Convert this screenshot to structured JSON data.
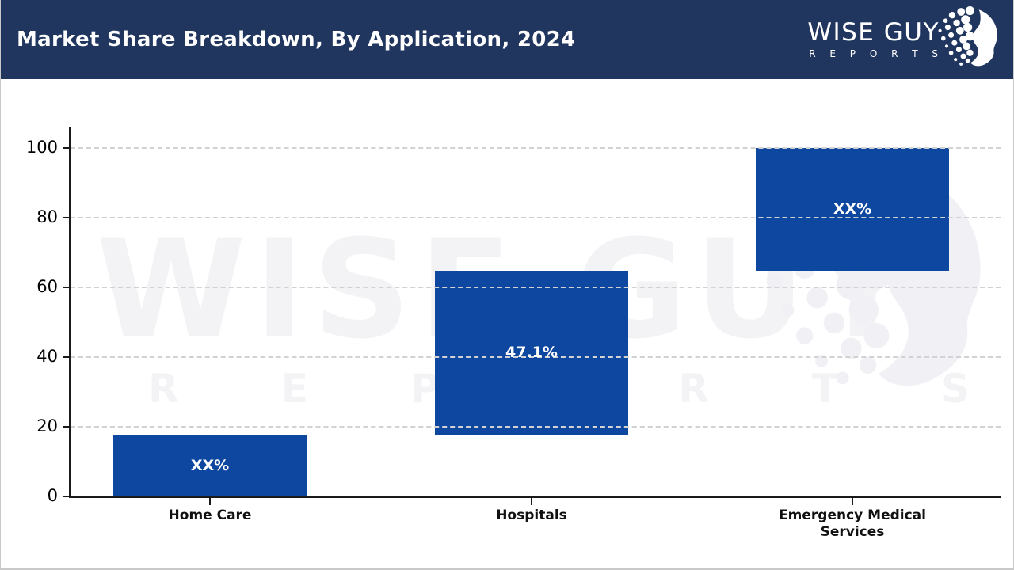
{
  "header": {
    "title": "Market Share Breakdown, By Application, 2024",
    "logo": {
      "wordmark": "WISE GUY",
      "subtext": "R E P O R T S",
      "head_icon": "dotted-head-profile-icon"
    }
  },
  "watermark": {
    "wordmark": "WISE GUY",
    "subtext": "R E P O R T S"
  },
  "chart_data": {
    "type": "bar",
    "subtype": "floating-waterfall-segments",
    "title": "Market Share Breakdown, By Application, 2024",
    "categories": [
      "Home Care",
      "Hospitals",
      "Emergency Medical Services"
    ],
    "bars": [
      {
        "category": "Home Care",
        "start": 0,
        "end": 17.7,
        "label": "XX%"
      },
      {
        "category": "Hospitals",
        "start": 17.7,
        "end": 64.8,
        "label": "47.1%"
      },
      {
        "category": "Emergency Medical Services",
        "start": 64.8,
        "end": 100,
        "label": "XX%"
      }
    ],
    "ylim": [
      0,
      106
    ],
    "yticks": [
      0,
      20,
      40,
      60,
      80,
      100
    ],
    "grid": "horizontal-dashed",
    "legend": "none",
    "colors": {
      "bar": "#0d479f",
      "bar_label": "#ffffff",
      "grid": "#d2d2d2",
      "axis": "#1a1a1a",
      "header_bg": "#20365f",
      "watermark": "#f3f3f6"
    }
  }
}
